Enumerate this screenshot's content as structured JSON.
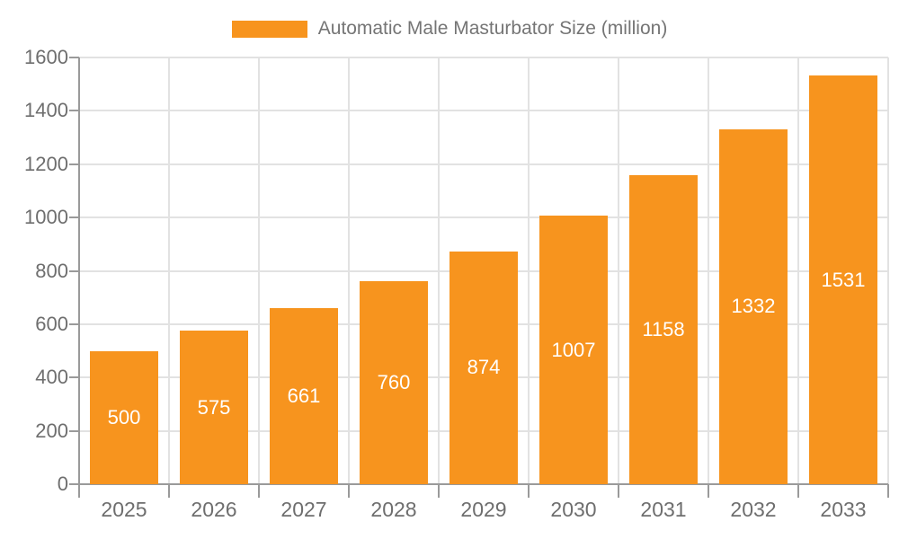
{
  "chart_data": {
    "type": "bar",
    "title": "",
    "legend": "Automatic Male Masturbator Size (million)",
    "legend_position": "top",
    "categories": [
      "2025",
      "2026",
      "2027",
      "2028",
      "2029",
      "2030",
      "2031",
      "2032",
      "2033"
    ],
    "series": [
      {
        "name": "Automatic Male Masturbator Size (million)",
        "values": [
          500,
          575,
          661,
          760,
          874,
          1007,
          1158,
          1332,
          1531
        ]
      }
    ],
    "bar_value_labels": [
      "500",
      "575",
      "661",
      "760",
      "874",
      "1007",
      "1158",
      "1332",
      "1531"
    ],
    "xlabel": "",
    "ylabel": "",
    "ylim": [
      0,
      1600
    ],
    "yticks": [
      0,
      200,
      400,
      600,
      800,
      1000,
      1200,
      1400,
      1600
    ],
    "ytick_labels": [
      "0",
      "200",
      "400",
      "600",
      "800",
      "1000",
      "1200",
      "1400",
      "1600"
    ],
    "grid": true,
    "colors": {
      "bar": "#F7941E",
      "bar_label": "#FFFFFF",
      "grid_line": "#E2E2E2",
      "axis_line": "#9A9A9A",
      "tick_mark": "#9A9A9A",
      "axis_text": "#6E6E6E",
      "legend_text": "#757575",
      "background": "#FFFFFF"
    }
  }
}
